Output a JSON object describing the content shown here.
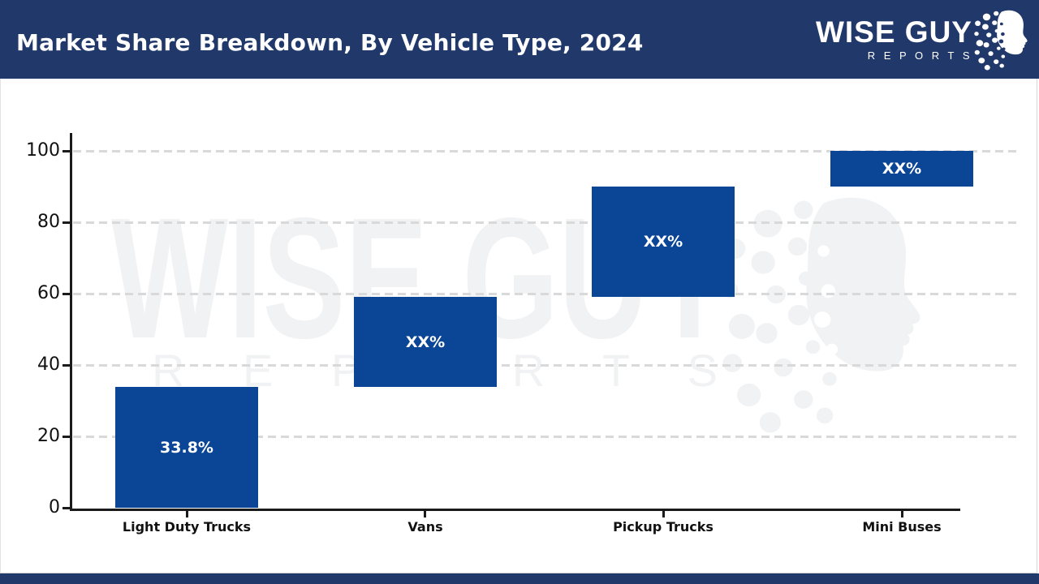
{
  "header": {
    "title": "Market Share Breakdown, By Vehicle Type, 2024",
    "bg_color": "#21386b",
    "logo": {
      "line1": "WISE GUY",
      "line2": "R E P O R T S",
      "head_icon": "dotted-head-profile-icon"
    }
  },
  "watermark": {
    "line1": "WISE GUY",
    "line2": "R E P O R T S",
    "head_icon": "dotted-head-profile-icon",
    "color": "#f1f2f4"
  },
  "chart_data": {
    "type": "bar",
    "subtype": "waterfall",
    "title": "Market Share Breakdown, By Vehicle Type, 2024",
    "categories": [
      "Light Duty Trucks",
      "Vans",
      "Pickup Trucks",
      "Mini Buses"
    ],
    "series": [
      {
        "name": "Market share (cumulative segments)",
        "starts": [
          0,
          33.8,
          59,
          90
        ],
        "ends": [
          33.8,
          59,
          90,
          100
        ]
      }
    ],
    "bar_labels": [
      "33.8%",
      "XX%",
      "XX%",
      "XX%"
    ],
    "xlabel": "",
    "ylabel": "",
    "yticks": [
      0,
      20,
      40,
      60,
      80,
      100
    ],
    "ylim": [
      0,
      105
    ],
    "grid": "horizontal-dashed",
    "legend": "none",
    "bar_color": "#0a4596",
    "bar_label_color": "#ffffff",
    "axis_color": "#1a1a1a",
    "gridline_color": "#d9d9d9"
  }
}
